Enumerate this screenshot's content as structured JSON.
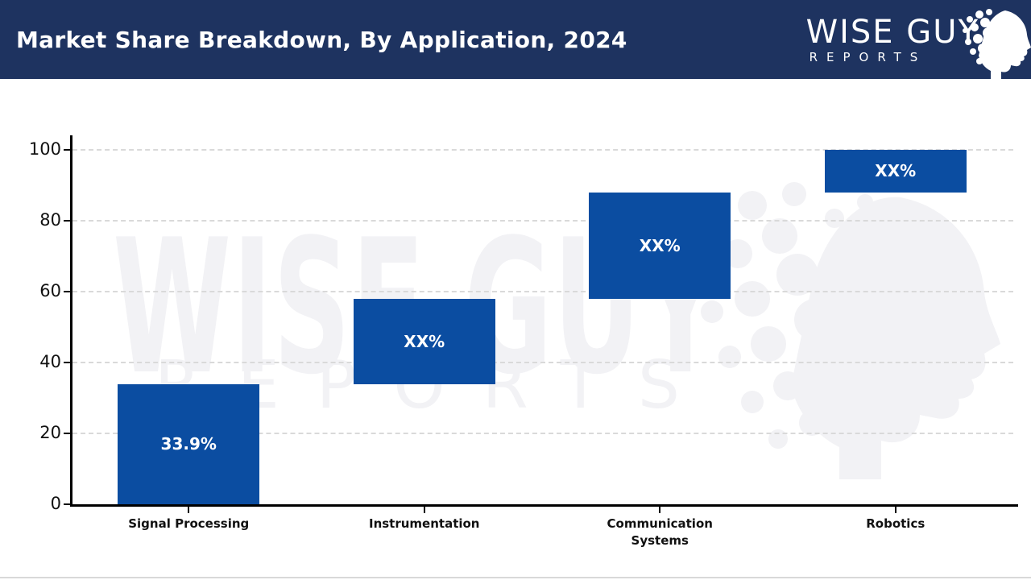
{
  "header": {
    "background_color": "#1e3360",
    "title": "Market Share Breakdown, By Application, 2024",
    "logo": {
      "wordmark": "WISE GUY",
      "subtext": "REPORTS"
    }
  },
  "watermark": {
    "wordmark": "WISE GUY",
    "subtext": "REPORTS",
    "color": "#f2f2f5"
  },
  "chart_data": {
    "type": "bar",
    "subtype": "waterfall",
    "title": "",
    "xlabel": "",
    "ylabel": "",
    "categories": [
      "Signal Processing",
      "Instrumentation",
      "Communication\nSystems",
      "Robotics"
    ],
    "series": [
      {
        "name": "Market share (%)",
        "segments": [
          {
            "start": 0,
            "end": 33.9
          },
          {
            "start": 33.9,
            "end": 58
          },
          {
            "start": 58,
            "end": 88
          },
          {
            "start": 88,
            "end": 100
          }
        ]
      }
    ],
    "bar_labels": [
      "33.9%",
      "XX%",
      "XX%",
      "XX%"
    ],
    "yticks": [
      0,
      20,
      40,
      60,
      80,
      100
    ],
    "ylim": [
      0,
      105
    ],
    "grid": "horizontal-dashed",
    "legend": "none",
    "colors": {
      "bar": "#0b4da1",
      "bar_label": "#ffffff",
      "axis": "#000000",
      "gridline": "#d9d9d9",
      "tick_label": "#111111"
    }
  },
  "footer": {
    "divider_color": "#d9d9d9"
  }
}
